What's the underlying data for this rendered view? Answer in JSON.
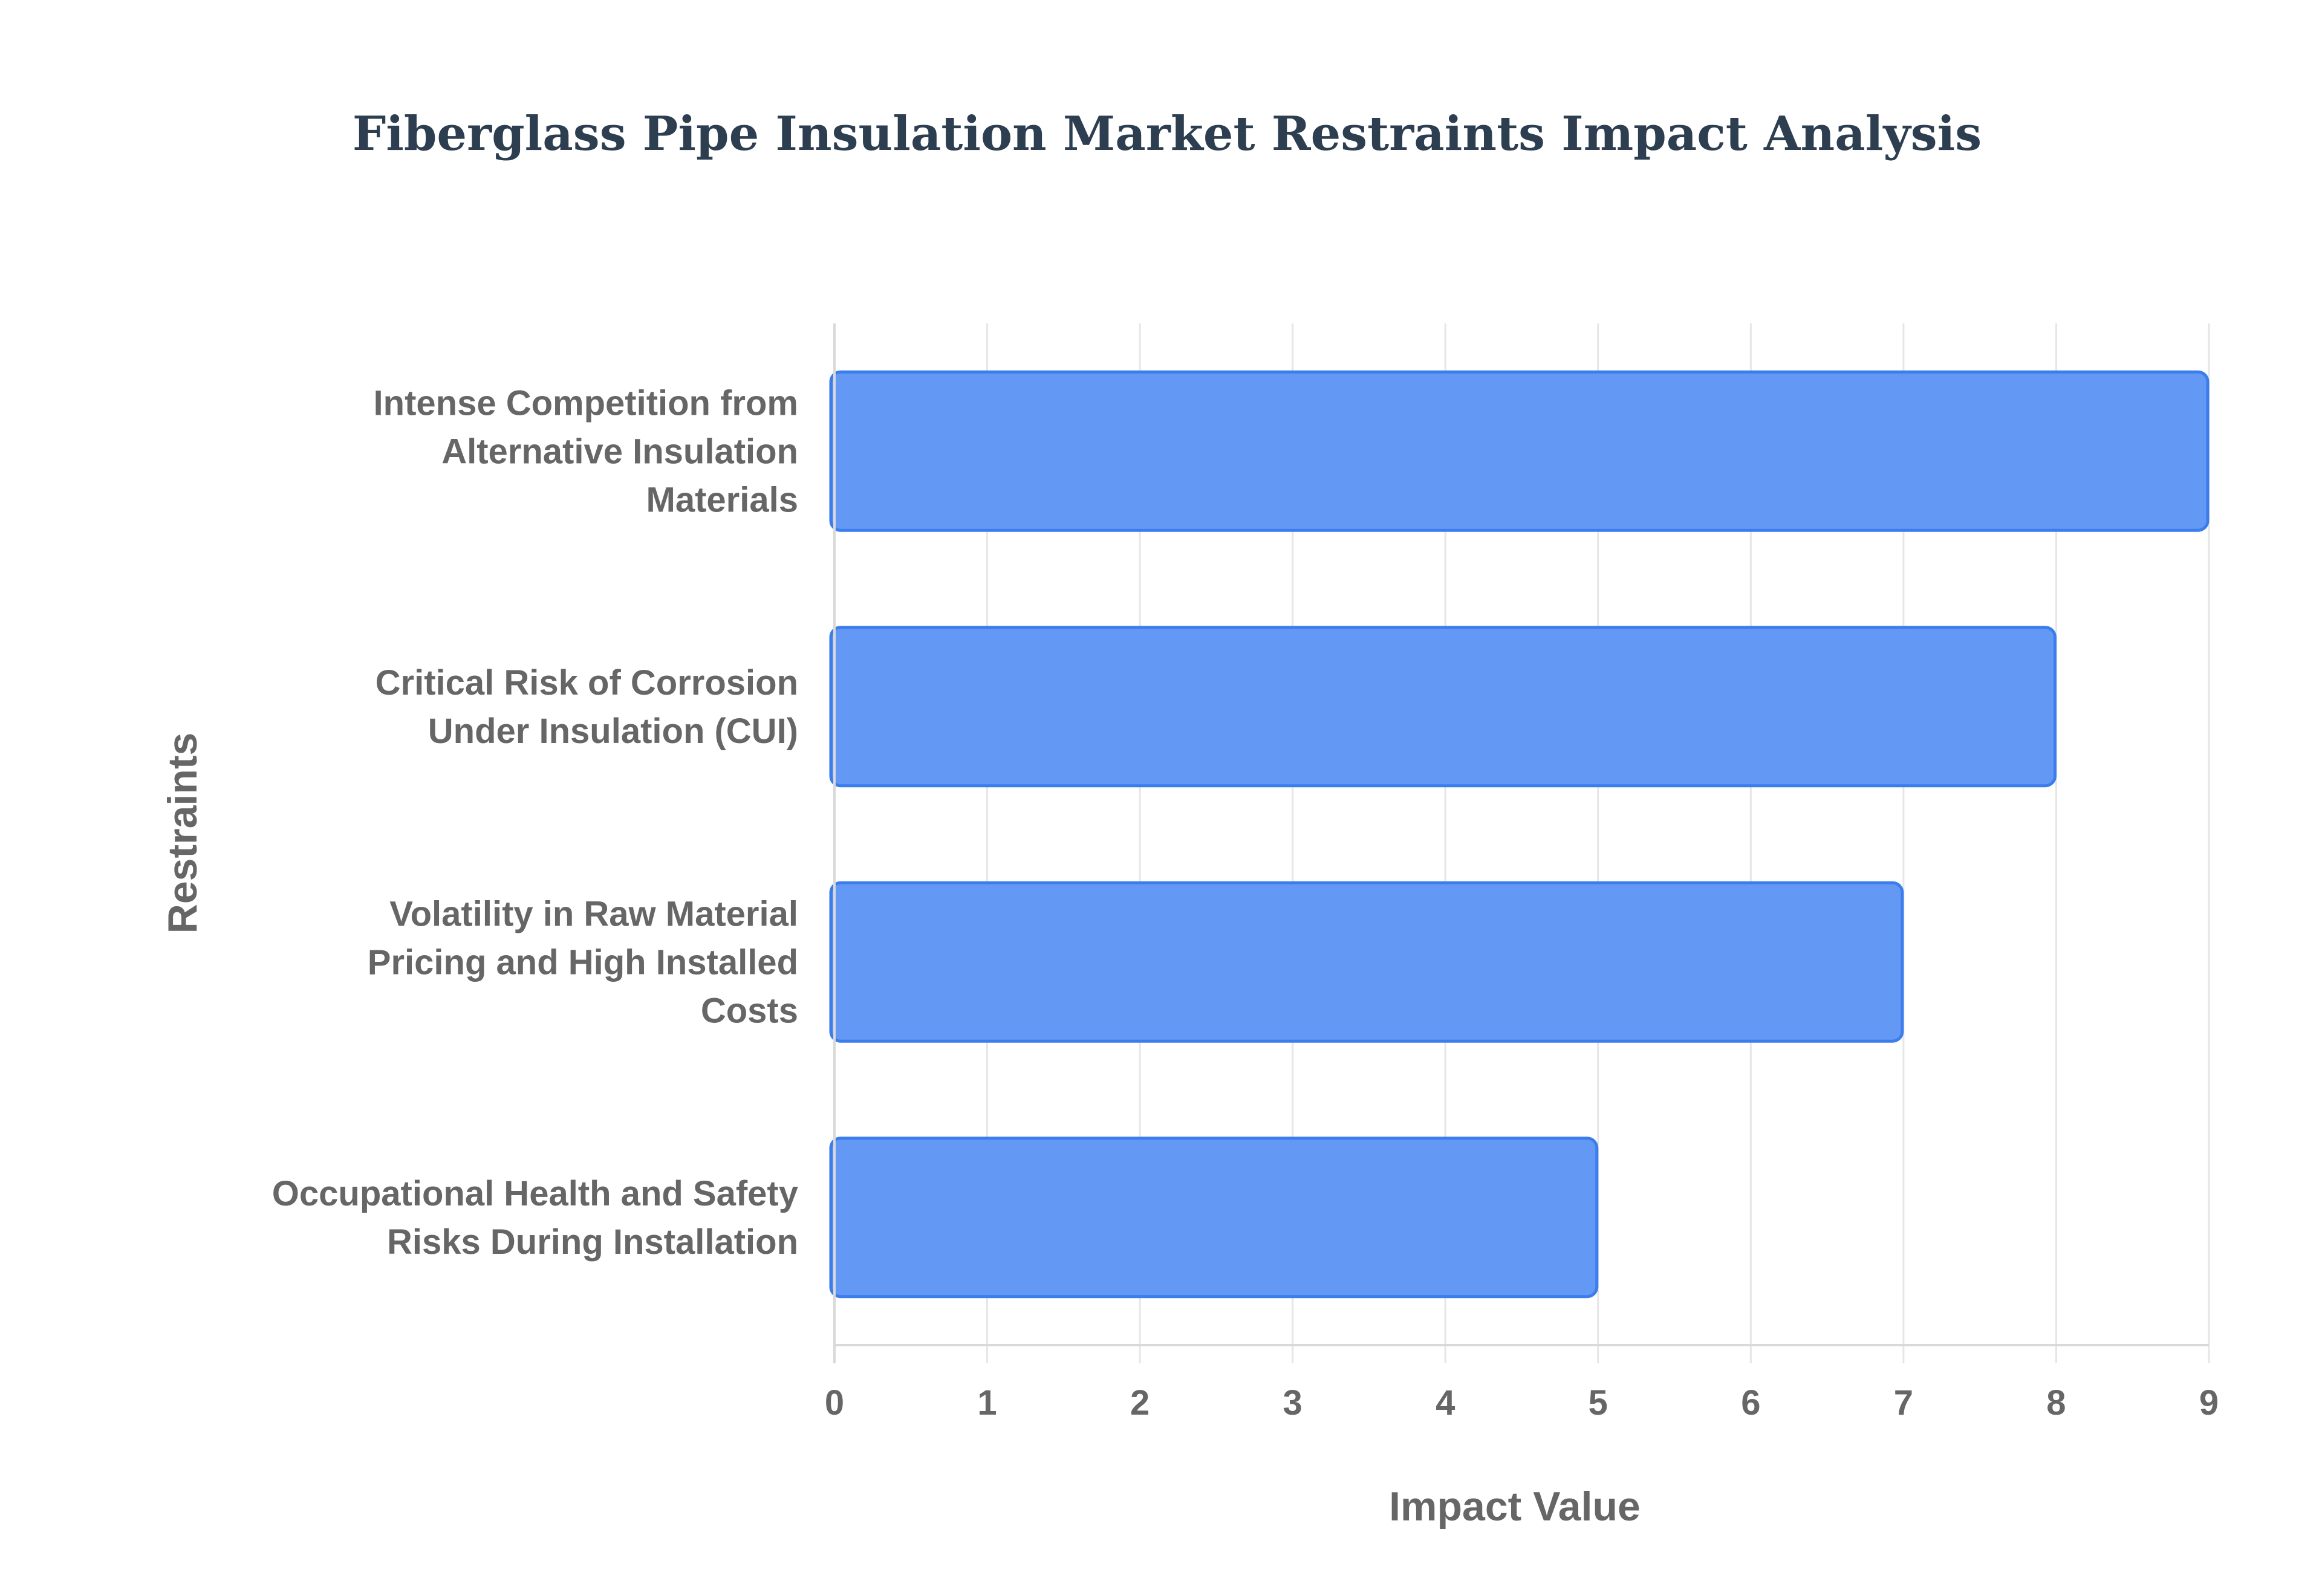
{
  "chart_data": {
    "type": "bar",
    "orientation": "horizontal",
    "title": "Fiberglass Pipe Insulation Market Restraints Impact Analysis",
    "xlabel": "Impact Value",
    "ylabel": "Restraints",
    "categories": [
      [
        "Intense Competition from",
        "Alternative Insulation",
        "Materials"
      ],
      [
        "Critical Risk of Corrosion",
        "Under Insulation (CUI)"
      ],
      [
        "Volatility in Raw Material",
        "Pricing and High Installed",
        "Costs"
      ],
      [
        "Occupational Health and Safety",
        "Risks During Installation"
      ]
    ],
    "values": [
      9,
      8,
      7,
      5
    ],
    "xlim": [
      0,
      9
    ],
    "xticks": [
      "0",
      "1",
      "2",
      "3",
      "4",
      "5",
      "6",
      "7",
      "8",
      "9"
    ],
    "grid": true,
    "legend": "none",
    "colors": {
      "bar_fill": "#6399f5",
      "bar_stroke": "#3b7ded",
      "grid": "#e6e6e6",
      "axis": "#d9d9d9",
      "title": "#2c3e50",
      "label": "#666666"
    }
  }
}
